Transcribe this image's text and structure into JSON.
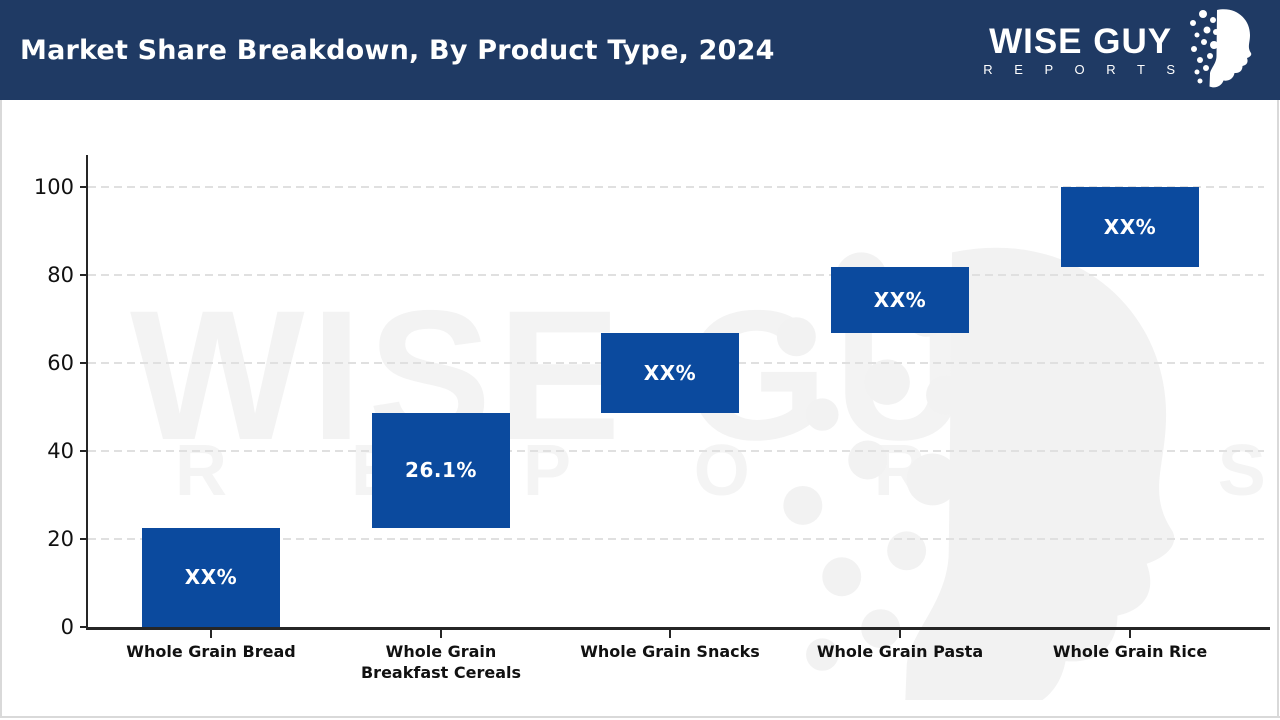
{
  "header": {
    "title": "Market Share Breakdown, By Product Type, 2024",
    "bg_color": "#1f3a64",
    "logo": {
      "line1": "WISE GUY",
      "line2": "R E P O R T S"
    }
  },
  "watermark": {
    "line1": "WISE GUY",
    "line2": "R E P O R T S"
  },
  "chart_data": {
    "type": "bar",
    "subtype": "floating-waterfall",
    "title": "Market Share Breakdown, By Product Type, 2024",
    "categories": [
      "Whole Grain Bread",
      "Whole Grain\nBreakfast Cereals",
      "Whole Grain Snacks",
      "Whole Grain Pasta",
      "Whole Grain Rice"
    ],
    "series": [
      {
        "name": "Market Share (%)",
        "base": [
          0,
          22.6,
          48.7,
          66.8,
          81.9
        ],
        "top": [
          22.6,
          48.7,
          66.8,
          81.9,
          100
        ],
        "values": [
          22.6,
          26.1,
          18.1,
          15.1,
          18.1
        ]
      }
    ],
    "bar_labels": [
      "XX%",
      "26.1%",
      "XX%",
      "XX%",
      "XX%"
    ],
    "xlabel": "",
    "ylabel": "",
    "ylim": [
      0,
      100
    ],
    "yticks": [
      0,
      20,
      40,
      60,
      80,
      100
    ],
    "grid": "horizontal-dashed",
    "legend": "none",
    "bar_color": "#0b4a9e",
    "label_color": "#ffffff",
    "axis_color": "#262626"
  }
}
